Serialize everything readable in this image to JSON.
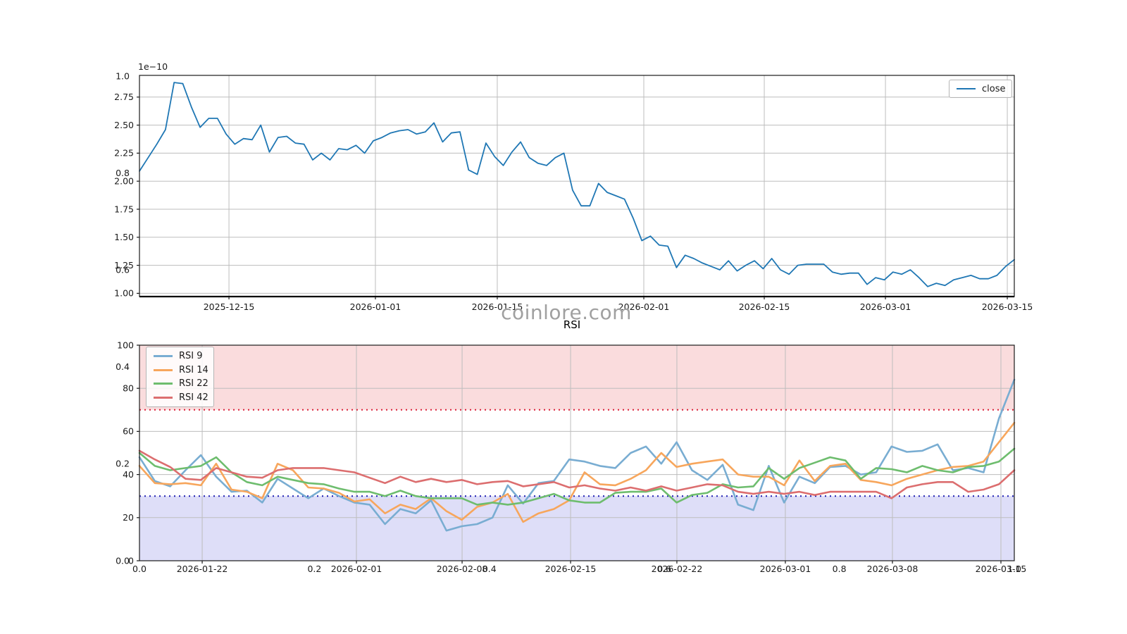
{
  "watermark": "coinlore.com",
  "hidden_axis": {
    "y_tick_labels": [
      "1.0",
      "0.8",
      "0.6",
      "0.4",
      "0.2",
      "0.0"
    ],
    "x_tick_labels": [
      "0.0",
      "0.2",
      "0.4",
      "0.6",
      "0.8",
      "1.0"
    ]
  },
  "chart_data": [
    {
      "type": "line",
      "title": "",
      "panel": "price",
      "x_start": "2025-12-05",
      "x_end": "2026-03-16",
      "frequency": "daily",
      "x_tick_labels": [
        "2025-12-15",
        "2026-01-01",
        "2026-01-15",
        "2026-02-01",
        "2026-02-15",
        "2026-03-01",
        "2026-03-15"
      ],
      "y_tick_labels": [
        "1.00",
        "1.25",
        "1.50",
        "1.75",
        "2.00",
        "2.25",
        "2.50",
        "2.75"
      ],
      "y_offset_label": "1e−10",
      "ylim": [
        0.97,
        2.94
      ],
      "grid": true,
      "legend_position": "upper right",
      "series": [
        {
          "name": "close",
          "color": "#1f77b4",
          "values": [
            2.09,
            2.21,
            2.33,
            2.46,
            2.88,
            2.87,
            2.66,
            2.48,
            2.56,
            2.56,
            2.42,
            2.33,
            2.38,
            2.37,
            2.5,
            2.26,
            2.39,
            2.4,
            2.34,
            2.33,
            2.19,
            2.25,
            2.19,
            2.29,
            2.28,
            2.32,
            2.25,
            2.36,
            2.39,
            2.43,
            2.45,
            2.46,
            2.42,
            2.44,
            2.52,
            2.35,
            2.43,
            2.44,
            2.1,
            2.06,
            2.34,
            2.22,
            2.14,
            2.26,
            2.35,
            2.21,
            2.16,
            2.14,
            2.21,
            2.25,
            1.92,
            1.78,
            1.78,
            1.98,
            1.9,
            1.87,
            1.84,
            1.67,
            1.47,
            1.51,
            1.43,
            1.42,
            1.23,
            1.34,
            1.31,
            1.27,
            1.24,
            1.21,
            1.29,
            1.2,
            1.25,
            1.29,
            1.22,
            1.31,
            1.21,
            1.17,
            1.25,
            1.26,
            1.26,
            1.26,
            1.19,
            1.17,
            1.18,
            1.18,
            1.08,
            1.14,
            1.12,
            1.19,
            1.17,
            1.21,
            1.14,
            1.06,
            1.09,
            1.07,
            1.12,
            1.14,
            1.16,
            1.13,
            1.13,
            1.16,
            1.24,
            1.3
          ]
        }
      ]
    },
    {
      "type": "line",
      "title": "RSI",
      "panel": "rsi",
      "x_start": "2026-01-18",
      "x_end": "2026-03-16",
      "frequency": "daily",
      "x_tick_labels": [
        "2026-01-22",
        "2026-02-01",
        "2026-02-08",
        "2026-02-15",
        "2026-02-22",
        "2026-03-01",
        "2026-03-08",
        "2026-03-15"
      ],
      "y_tick_labels": [
        "0",
        "20",
        "40",
        "60",
        "80",
        "100"
      ],
      "ylim": [
        0,
        100
      ],
      "grid": true,
      "legend_position": "upper left",
      "overbought_level": 70,
      "oversold_level": 30,
      "band_colors": {
        "overbought": "#fadcdd",
        "oversold": "#dedef8"
      },
      "threshold_line_colors": {
        "overbought": "#d91f36",
        "oversold": "#1c1cb0"
      },
      "series": [
        {
          "name": "RSI 9",
          "color": "#79add2",
          "values": [
            48,
            37,
            34.5,
            42,
            49,
            39,
            32,
            32.5,
            27,
            38,
            33.5,
            29,
            33.5,
            30,
            27,
            26,
            17,
            24,
            22,
            28,
            14,
            16,
            17,
            20,
            35,
            26.5,
            36,
            37,
            47,
            46,
            44,
            43,
            50,
            53,
            45,
            55,
            42,
            37.5,
            44.5,
            26,
            23.5,
            44,
            27,
            39,
            36,
            43.5,
            44,
            40,
            41,
            53,
            50.5,
            51,
            54,
            42,
            43,
            41,
            66,
            84
          ]
        },
        {
          "name": "RSI 14",
          "color": "#f7a65c",
          "values": [
            44,
            36,
            35.5,
            36,
            35,
            45,
            33,
            32,
            29,
            45,
            42,
            34,
            33.5,
            31.5,
            27.5,
            28.5,
            22,
            26,
            24,
            29,
            23,
            19,
            25,
            27,
            31,
            18,
            22,
            24,
            28,
            41,
            35.5,
            35,
            38,
            42,
            50,
            43.5,
            45,
            46,
            47,
            40,
            39,
            39,
            35,
            46.5,
            37,
            44,
            45,
            37.5,
            36.5,
            35,
            38,
            40,
            42,
            43.5,
            44,
            46,
            55,
            64
          ]
        },
        {
          "name": "RSI 22",
          "color": "#6ebd6e",
          "values": [
            50,
            44,
            42,
            43,
            44,
            48,
            41,
            36.5,
            35,
            39,
            37.5,
            36,
            35.5,
            33.5,
            32,
            32,
            30,
            32.5,
            30,
            29,
            29,
            29,
            26,
            27,
            26,
            27,
            29,
            31,
            28,
            27,
            27,
            31.5,
            32,
            32,
            33.5,
            27,
            30.5,
            31.5,
            35.5,
            34,
            34.5,
            43,
            38,
            43,
            45.5,
            48,
            46.5,
            38,
            43,
            42.5,
            41,
            44,
            42,
            41,
            43.5,
            44,
            46,
            52
          ]
        },
        {
          "name": "RSI 42",
          "color": "#dc6e6f",
          "values": [
            51,
            47,
            43.5,
            38,
            37.5,
            43,
            41,
            39,
            38.5,
            42,
            43,
            43,
            43,
            42,
            41,
            38.5,
            36,
            39,
            36.5,
            38,
            36.5,
            37.5,
            35.5,
            36.5,
            37,
            34.5,
            35.5,
            36.5,
            34,
            35,
            33.5,
            32.5,
            34,
            32.5,
            34.5,
            32.5,
            34,
            35.5,
            35,
            32,
            31,
            32,
            31,
            32,
            30.5,
            32,
            32,
            32,
            32,
            29,
            34,
            35.5,
            36.5,
            36.5,
            32,
            33,
            35.5,
            42
          ]
        }
      ]
    }
  ]
}
